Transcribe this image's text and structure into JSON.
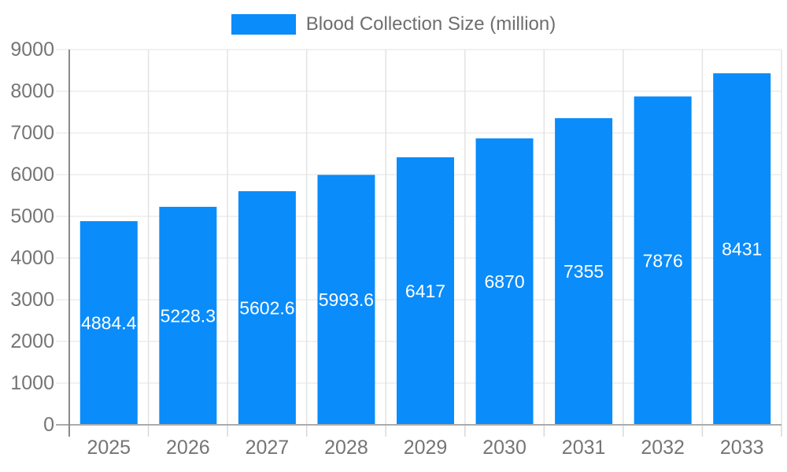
{
  "legend": {
    "label": "Blood Collection Size (million)",
    "swatch_color": "#0A8CFA"
  },
  "chart_data": {
    "type": "bar",
    "title": "",
    "legend_entries": [
      "Blood Collection Size (million)"
    ],
    "legend_position": "top-center",
    "categories": [
      "2025",
      "2026",
      "2027",
      "2028",
      "2029",
      "2030",
      "2031",
      "2032",
      "2033"
    ],
    "series": [
      {
        "name": "Blood Collection Size (million)",
        "values": [
          4884.4,
          5228.3,
          5602.6,
          5993.6,
          6417,
          6870,
          7355,
          7876,
          8431
        ]
      }
    ],
    "value_labels": [
      "4884.4",
      "5228.3",
      "5602.6",
      "5993.6",
      "6417",
      "6870",
      "7355",
      "7876",
      "8431"
    ],
    "xlabel": "",
    "ylabel": "",
    "ylim": [
      0,
      9000
    ],
    "ytick_step": 1000,
    "ytick_labels": [
      "0",
      "1000",
      "2000",
      "3000",
      "4000",
      "5000",
      "6000",
      "7000",
      "8000",
      "9000"
    ],
    "grid": "both",
    "colors": {
      "bar": "#0A8CFA",
      "bar_label": "#FFFFFF",
      "axis_text": "#757575",
      "legend_text": "#6E6E6E",
      "gridline": "#E3E3E3",
      "y_axis_line": "#8A8A8A",
      "x_axis_line": "#ABABAB",
      "tick": "#D8D8D8"
    }
  }
}
